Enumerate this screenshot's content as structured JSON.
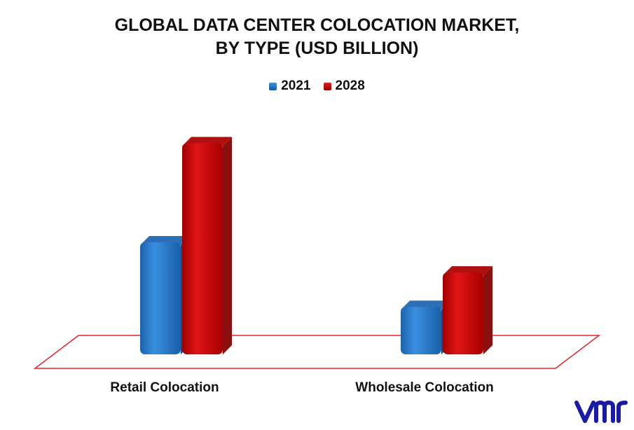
{
  "chart_data": {
    "type": "bar",
    "title": "GLOBAL DATA CENTER COLOCATION MARKET,",
    "subtitle": "BY TYPE (USD BILLION)",
    "categories": [
      "Retail Colocation",
      "Wholesale Colocation"
    ],
    "series": [
      {
        "name": "2021",
        "values": [
          26,
          11
        ],
        "color": "#1f72c4"
      },
      {
        "name": "2028",
        "values": [
          49,
          19
        ],
        "color": "#c00000"
      }
    ],
    "ylim": [
      0,
      52
    ],
    "grid": false,
    "legend": "top-center",
    "xlabel": "",
    "ylabel": ""
  },
  "colors": {
    "floor": "#e8202a",
    "blue": "#1f72c4",
    "red": "#c00000",
    "logo": "#1a1aa8"
  },
  "logo": {
    "icon": "vmr-logo"
  }
}
